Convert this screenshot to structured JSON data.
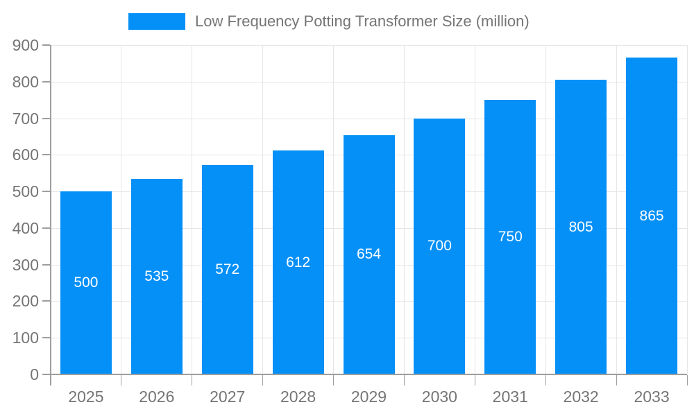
{
  "legend": {
    "label": "Low Frequency Potting Transformer Size (million)"
  },
  "chart_data": {
    "type": "bar",
    "title": "Low Frequency Potting Transformer Size (million)",
    "categories": [
      "2025",
      "2026",
      "2027",
      "2028",
      "2029",
      "2030",
      "2031",
      "2032",
      "2033"
    ],
    "values": [
      500,
      535,
      572,
      612,
      654,
      700,
      750,
      805,
      865
    ],
    "series": [
      {
        "name": "Low Frequency Potting Transformer Size (million)",
        "values": [
          500,
          535,
          572,
          612,
          654,
          700,
          750,
          805,
          865
        ]
      }
    ],
    "xlabel": "",
    "ylabel": "",
    "ylim": [
      0,
      900
    ],
    "ytick_step": 100,
    "ytick_labels": [
      "0",
      "100",
      "200",
      "300",
      "400",
      "500",
      "600",
      "700",
      "800",
      "900"
    ],
    "grid": true,
    "legend_position": "top",
    "value_labels": "inside-center",
    "colors": {
      "bar": "#0590f8",
      "value_label": "#ffffff",
      "axis_text": "#757575",
      "gridline": "#e6e6e6",
      "axis_line": "#9e9e9e",
      "background": "#ffffff"
    }
  }
}
